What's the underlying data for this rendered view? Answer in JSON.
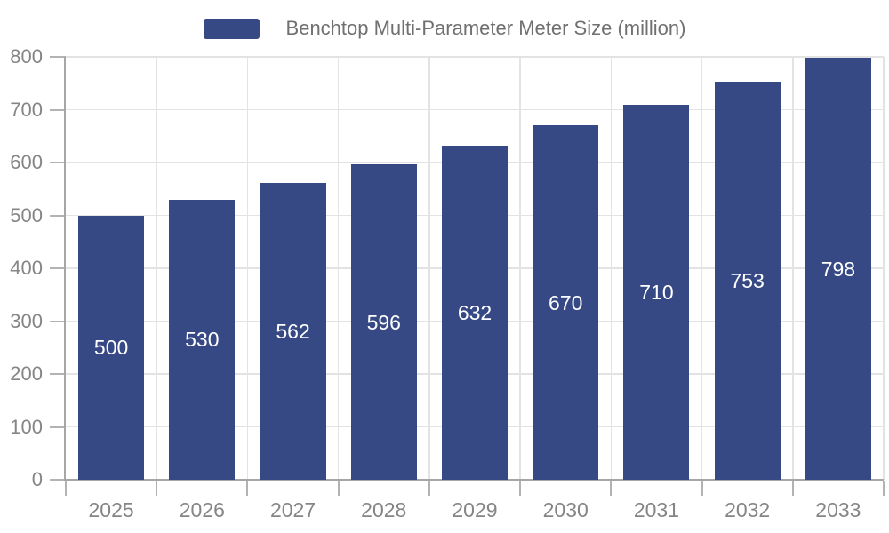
{
  "chart_data": {
    "type": "bar",
    "title": "",
    "xlabel": "",
    "ylabel": "",
    "legend": {
      "position": "top",
      "label": "Benchtop Multi-Parameter Meter Size (million)"
    },
    "categories": [
      "2025",
      "2026",
      "2027",
      "2028",
      "2029",
      "2030",
      "2031",
      "2032",
      "2033"
    ],
    "series": [
      {
        "name": "Benchtop Multi-Parameter Meter Size (million)",
        "values": [
          500,
          530,
          562,
          596,
          632,
          670,
          710,
          753,
          798
        ]
      }
    ],
    "ylim": [
      0,
      800
    ],
    "ytick_interval": 100,
    "grid": true,
    "colors": {
      "bar": "#364985",
      "grid": "#e3e3e3",
      "axis": "#a6a6a6",
      "tick": "#b3b3b3",
      "tick_label": "#858585",
      "legend_text": "#707070",
      "data_label": "#ffffff",
      "background": "#ffffff"
    }
  }
}
